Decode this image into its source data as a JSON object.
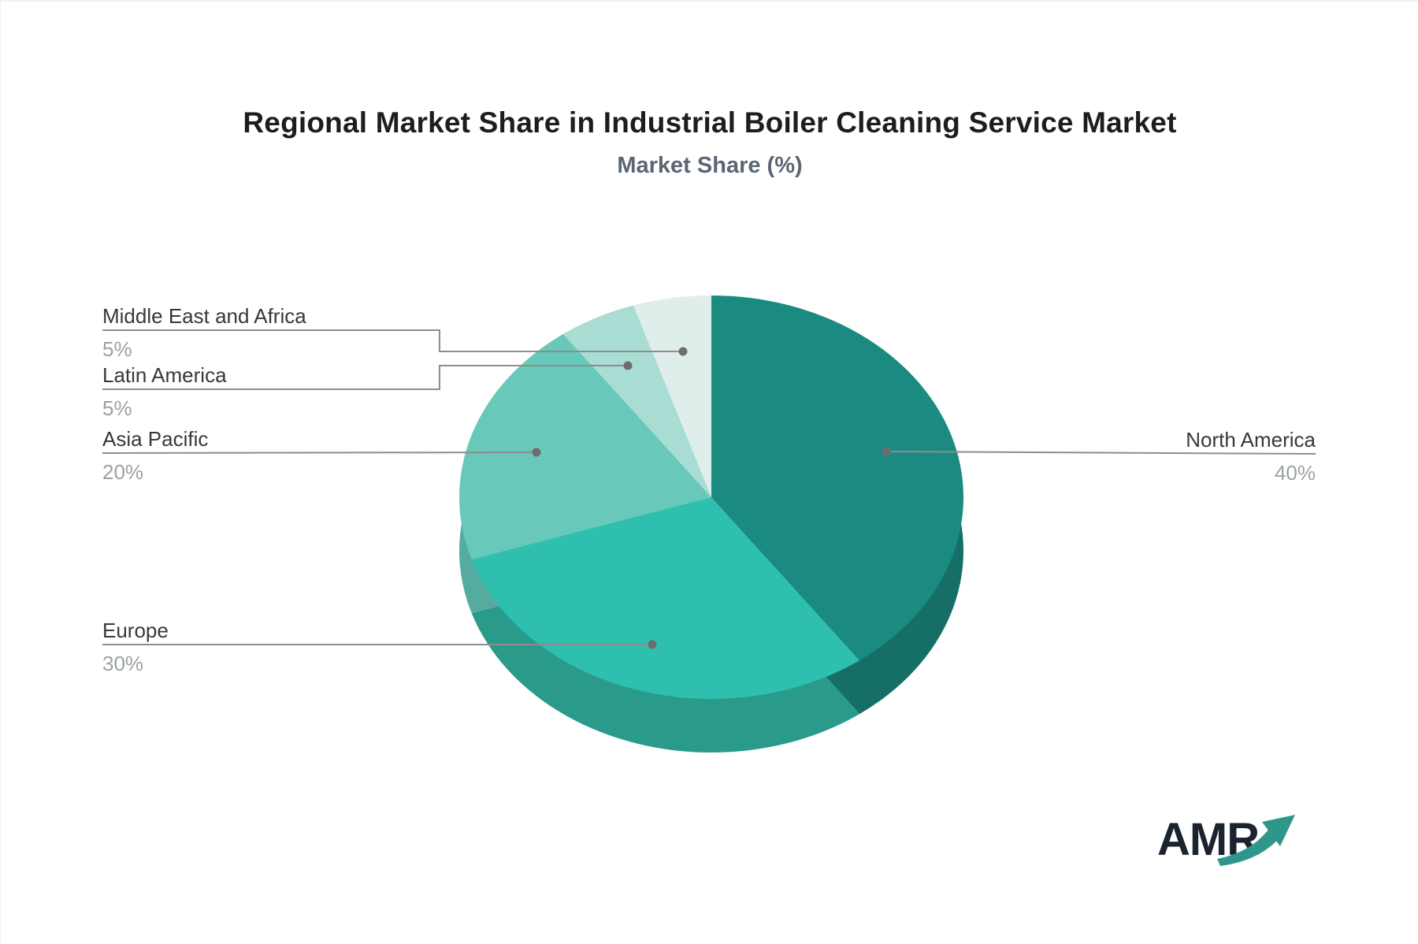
{
  "title": "Regional Market Share in Industrial Boiler Cleaning Service Market",
  "subtitle": "Market Share (%)",
  "logo": {
    "text": "AMR",
    "text_color": "#1a232e",
    "arrow_color": "#2f968b"
  },
  "chart_data": {
    "type": "pie",
    "title": "Regional Market Share in Industrial Boiler Cleaning Service Market",
    "subtitle": "Market Share (%)",
    "unit": "%",
    "effect": "3d",
    "legend": "none",
    "start_angle_deg": 0,
    "clockwise": true,
    "categories": [
      "North America",
      "Europe",
      "Asia Pacific",
      "Latin America",
      "Middle East and Africa"
    ],
    "values": [
      40,
      30,
      20,
      5,
      5
    ],
    "slices": [
      {
        "name": "North America",
        "value": 40,
        "label": "40%",
        "color": "#1b8a80",
        "side_color": "#166f67"
      },
      {
        "name": "Europe",
        "value": 30,
        "label": "30%",
        "color": "#2ebfae",
        "side_color": "#2a9a8b"
      },
      {
        "name": "Asia Pacific",
        "value": 20,
        "label": "20%",
        "color": "#68c9bb",
        "side_color": "#55ab9e"
      },
      {
        "name": "Latin America",
        "value": 5,
        "label": "5%",
        "color": "#a9ddd3",
        "side_color": "#8cc2b8"
      },
      {
        "name": "Middle East and Africa",
        "value": 5,
        "label": "5%",
        "color": "#e0eeeb",
        "side_color": "#c3d9d5"
      }
    ],
    "label_line_color": "#8d8d8d",
    "label_dot_color": "#6d6d6d",
    "label_name_color": "#383838",
    "label_value_color": "#9ba1a5"
  }
}
